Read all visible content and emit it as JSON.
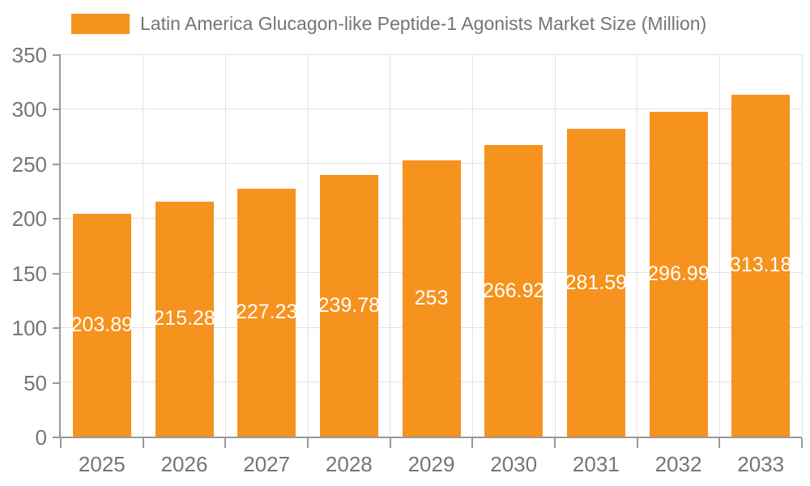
{
  "chart_data": {
    "type": "bar",
    "title": "Latin America Glucagon-like Peptide-1 Agonists Market Size (Million)",
    "series_name": "Latin America Glucagon-like Peptide-1 Agonists Market Size (Million)",
    "categories": [
      "2025",
      "2026",
      "2027",
      "2028",
      "2029",
      "2030",
      "2031",
      "2032",
      "2033"
    ],
    "values": [
      203.89,
      215.28,
      227.23,
      239.78,
      253,
      266.92,
      281.59,
      296.99,
      313.18
    ],
    "bar_labels": [
      "203.89",
      "215.28",
      "227.23",
      "239.78",
      "253",
      "266.92",
      "281.59",
      "296.99",
      "313.18"
    ],
    "xlabel": "",
    "ylabel": "",
    "ylim": [
      0,
      350
    ],
    "yticks": [
      0,
      50,
      100,
      150,
      200,
      250,
      300,
      350
    ],
    "grid": true,
    "legend_position": "top-left",
    "bar_label_position": "inside-center",
    "colors": {
      "bar": "#F6921E",
      "grid": "#E2E2E2",
      "axis": "#999999",
      "text": "#757575",
      "bar_label": "#FFFFFF",
      "background": "#FFFFFF"
    }
  }
}
